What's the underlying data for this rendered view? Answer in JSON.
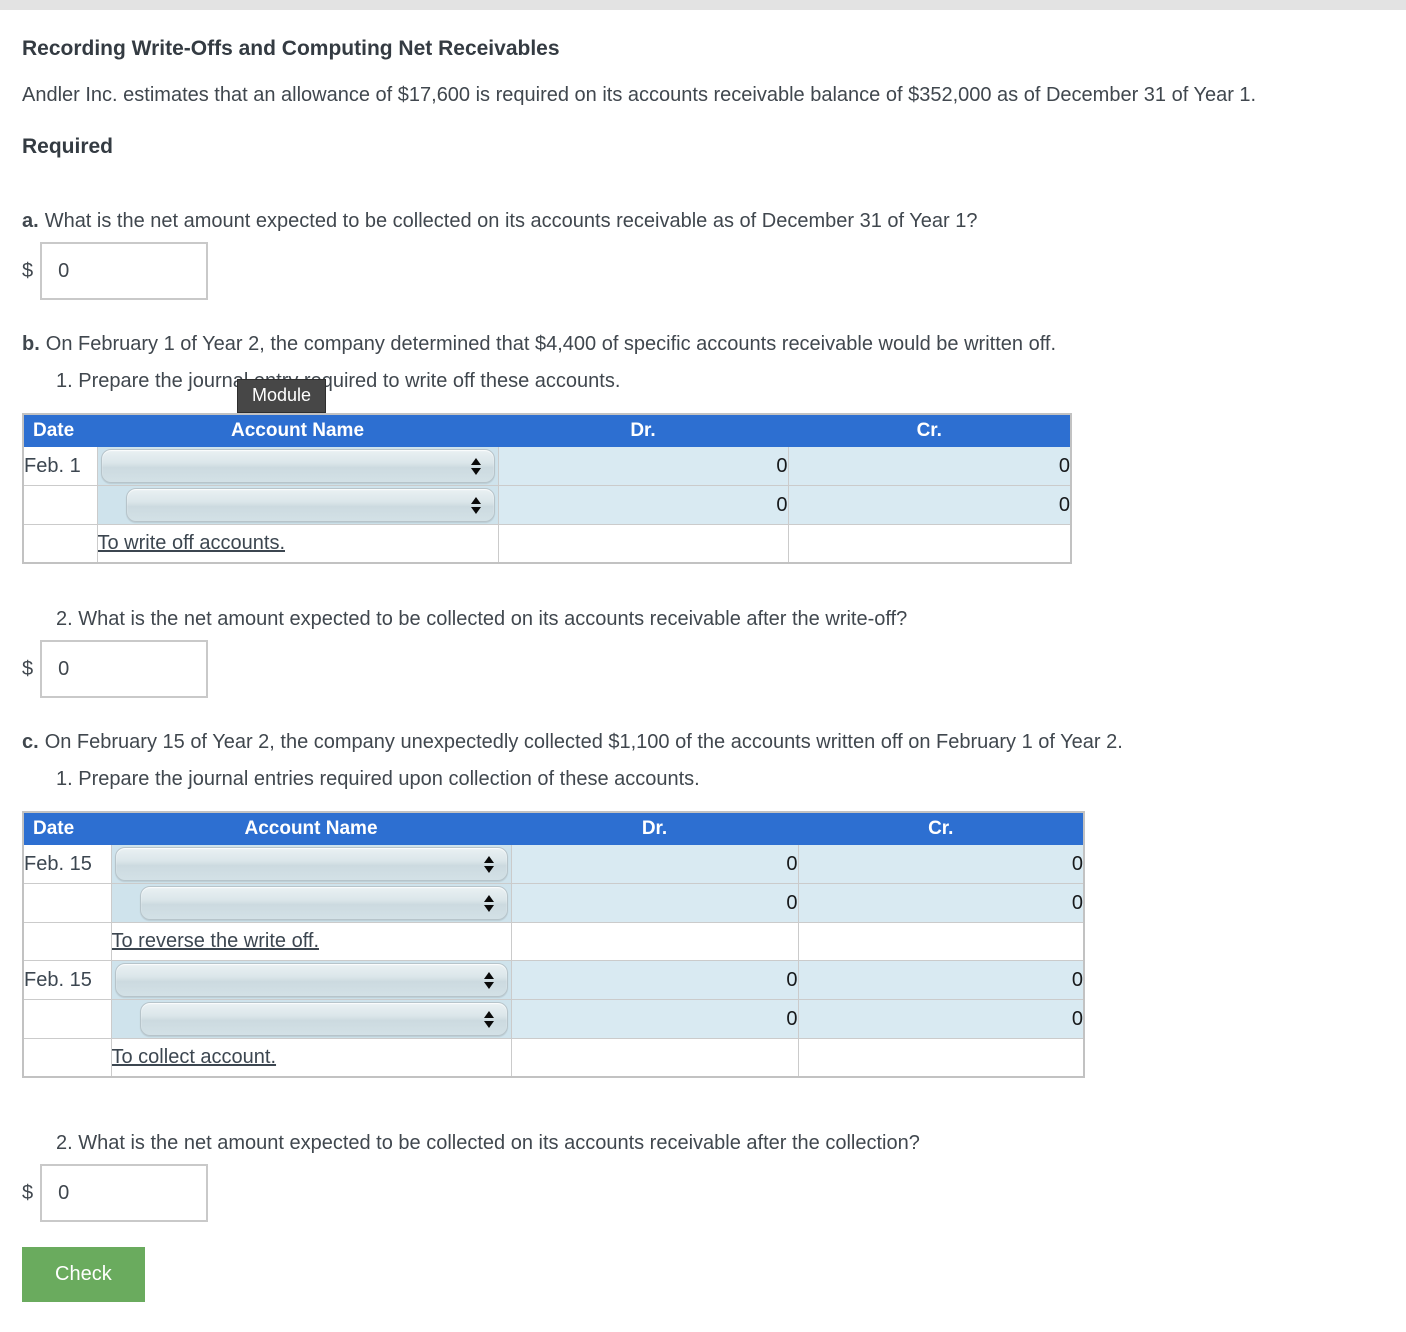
{
  "page": {
    "title": "Recording Write-Offs and Computing Net Receivables",
    "intro": "Andler Inc. estimates that an allowance of $17,600 is required on its accounts receivable balance of $352,000 as of December 31 of Year 1.",
    "required_label": "Required",
    "currency_symbol": "$"
  },
  "part_a": {
    "label": "a.",
    "question": "What is the net amount expected to be collected on its accounts receivable as of December 31 of Year 1?",
    "answer": "0"
  },
  "part_b": {
    "label": "b.",
    "statement": "On February 1 of Year 2, the company determined that $4,400 of specific accounts receivable would be written off.",
    "instruction1": "1. Prepare the journal entry required to write off these accounts.",
    "tooltip": "Module",
    "question2": "2. What is the net amount expected to be collected on its accounts receivable after the write-off?",
    "answer2": "0"
  },
  "part_c": {
    "label": "c.",
    "statement": "On February 15 of Year 2, the company unexpectedly collected $1,100 of the accounts written off on February 1 of Year 2.",
    "instruction1": "1. Prepare the journal entries required upon collection of these accounts.",
    "question2": "2. What is the net amount expected to be collected on its accounts receivable after the collection?",
    "answer2": "0"
  },
  "journal_table_b": {
    "headers": {
      "date": "Date",
      "account": "Account Name",
      "dr": "Dr.",
      "cr": "Cr."
    },
    "rows": [
      {
        "date": "Feb. 1",
        "dr": "0",
        "cr": "0"
      },
      {
        "date": "",
        "dr": "0",
        "cr": "0"
      },
      {
        "note": "To write off accounts."
      }
    ]
  },
  "journal_table_c": {
    "headers": {
      "date": "Date",
      "account": "Account Name",
      "dr": "Dr.",
      "cr": "Cr."
    },
    "rows": [
      {
        "date": "Feb. 15",
        "dr": "0",
        "cr": "0"
      },
      {
        "date": "",
        "dr": "0",
        "cr": "0"
      },
      {
        "note": "To reverse the write off."
      },
      {
        "date": "Feb. 15",
        "dr": "0",
        "cr": "0"
      },
      {
        "date": "",
        "dr": "0",
        "cr": "0"
      },
      {
        "note": "To collect account."
      }
    ]
  },
  "check_button_label": "Check",
  "icons": {
    "account_select_spinner": "up-down-triangles"
  },
  "colors": {
    "table_header_blue": "#2d6fd1",
    "account_cell_blue": "#cfe3ec",
    "amount_cell_blue": "#d9eaf2",
    "check_button_green": "#6aab5e",
    "tooltip_gray": "#474747"
  }
}
